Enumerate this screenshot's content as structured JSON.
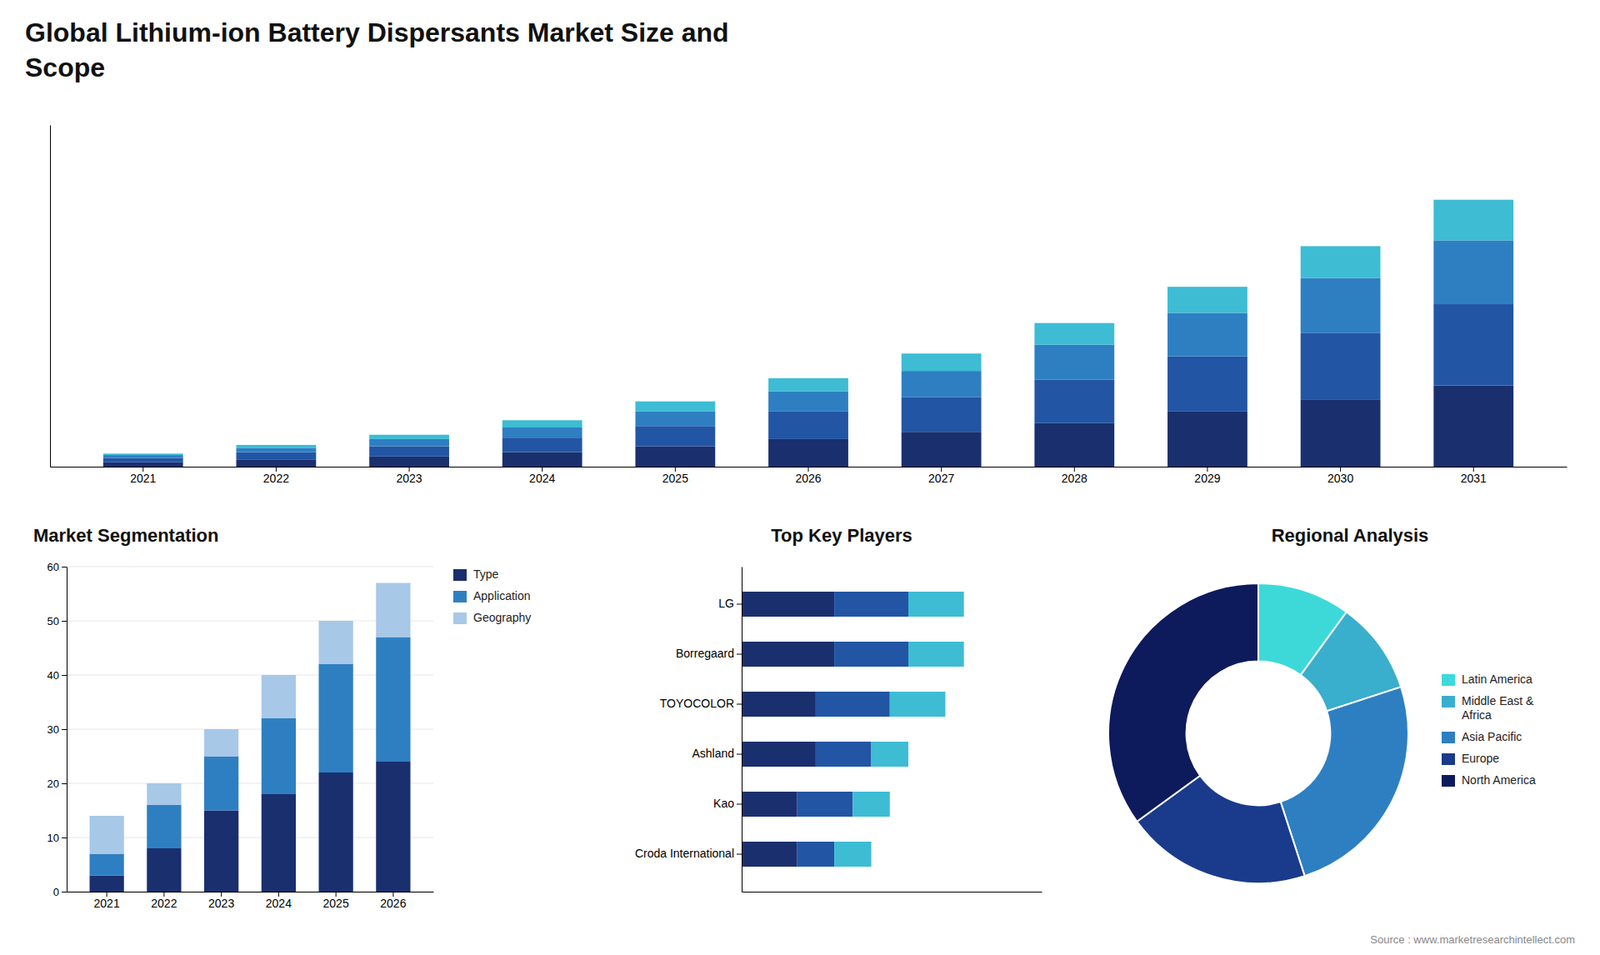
{
  "chart_data": [
    {
      "type": "bar",
      "stacked": true,
      "title": "Global Lithium-ion Battery Dispersants Market Size and\nScope",
      "categories": [
        "2021",
        "2022",
        "2023",
        "2024",
        "2025",
        "2026",
        "2027",
        "2028",
        "2029",
        "2030",
        "2031"
      ],
      "series": [
        {
          "color": "#1a2f6e",
          "values": [
            1.5,
            2.5,
            3.5,
            5.0,
            7.0,
            9.5,
            12.0,
            15.0,
            19.0,
            23.0,
            28.0
          ]
        },
        {
          "color": "#2255a4",
          "values": [
            1.5,
            2.5,
            3.5,
            5.0,
            7.0,
            9.5,
            12.0,
            15.0,
            19.0,
            23.0,
            28.0
          ]
        },
        {
          "color": "#2e7fc2",
          "values": [
            1.0,
            1.5,
            2.5,
            3.5,
            5.0,
            7.0,
            9.0,
            12.0,
            15.0,
            19.0,
            22.0
          ]
        },
        {
          "color": "#3dbcd4",
          "values": [
            0.5,
            1.0,
            1.5,
            2.5,
            3.5,
            4.5,
            6.0,
            7.5,
            9.0,
            11.0,
            14.0
          ]
        }
      ],
      "ylim": [
        0,
        117.76
      ],
      "tick_labels": "x",
      "grid": false
    },
    {
      "type": "bar",
      "stacked": true,
      "title": "Market Segmentation",
      "categories": [
        "2021",
        "2022",
        "2023",
        "2024",
        "2025",
        "2026"
      ],
      "series": [
        {
          "name": "Type",
          "color": "#1a2f6e",
          "values": [
            3,
            8,
            15,
            18,
            22,
            24
          ]
        },
        {
          "name": "Application",
          "color": "#2e7fc2",
          "values": [
            4,
            8,
            10,
            14,
            20,
            23
          ]
        },
        {
          "name": "Geography",
          "color": "#a8c8e8",
          "values": [
            7,
            4,
            5,
            8,
            8,
            10
          ]
        }
      ],
      "ylim": [
        0,
        60
      ],
      "yticks": [
        0,
        10,
        20,
        30,
        40,
        50,
        60
      ],
      "grid": true,
      "legend": "upper right"
    },
    {
      "type": "bar",
      "stacked": true,
      "orientation": "horizontal",
      "title": "Top Key Players",
      "categories": [
        "LG",
        "Borregaard",
        "TOYOCOLOR",
        "Ashland",
        "Kao",
        "Croda International"
      ],
      "series": [
        {
          "color": "#1a2f6e",
          "values": [
            5,
            5,
            4,
            4,
            3,
            3
          ]
        },
        {
          "color": "#2255a4",
          "values": [
            4,
            4,
            4,
            3,
            3,
            2
          ]
        },
        {
          "color": "#3dbcd4",
          "values": [
            3,
            3,
            3,
            2,
            2,
            2
          ]
        }
      ],
      "xlim": [
        0,
        16.2
      ],
      "tick_labels": "y",
      "grid": false
    },
    {
      "type": "pie",
      "title": "Regional Analysis",
      "categories": [
        "Latin America",
        "Middle East &\nAfrica",
        "Asia Pacific",
        "Europe",
        "North America"
      ],
      "values": [
        10,
        10,
        25,
        20,
        35
      ],
      "colors": [
        "#3dd9d9",
        "#3aaecd",
        "#2e7fc2",
        "#1a3a8c",
        "#0d1a5c"
      ],
      "legend": "right",
      "annotations": [
        "Source : www.marketresearchintellect.com"
      ]
    }
  ]
}
